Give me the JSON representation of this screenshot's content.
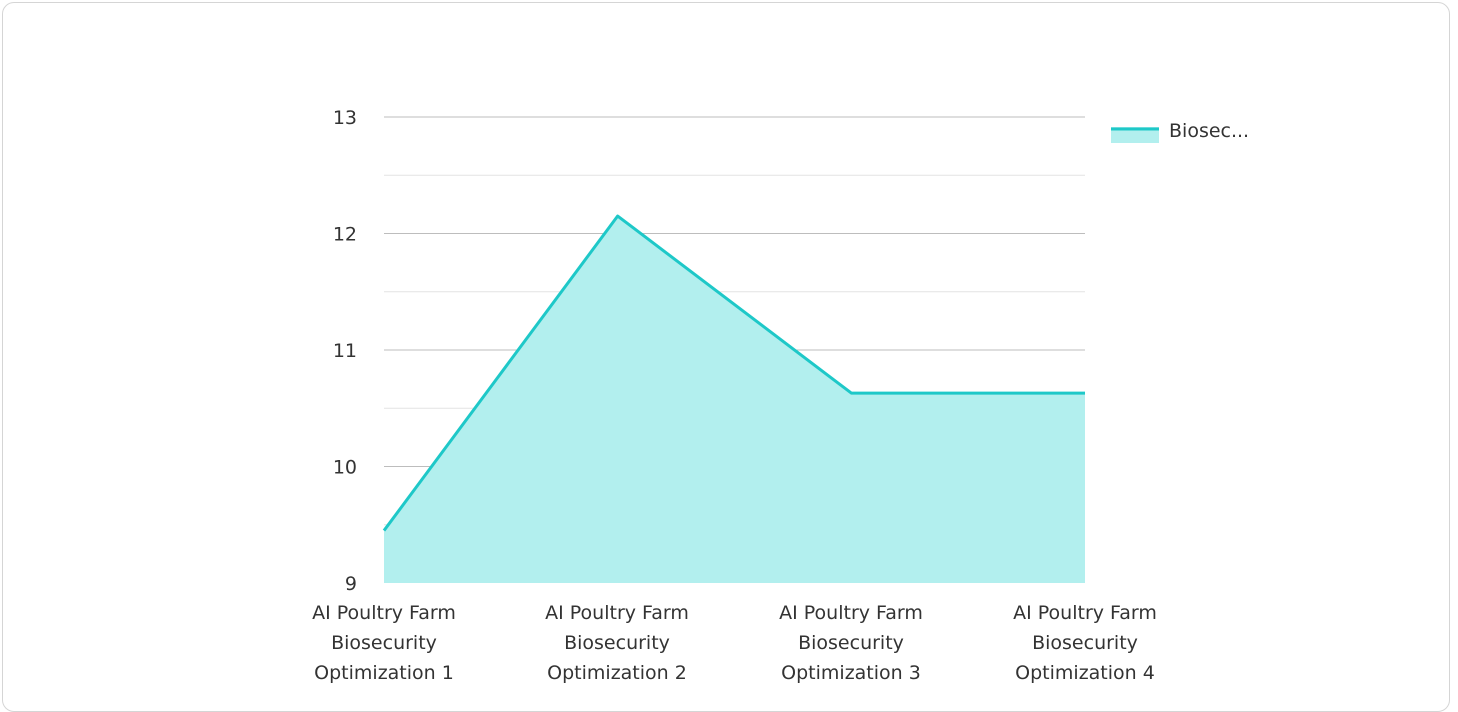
{
  "chart_data": {
    "type": "area",
    "categories": [
      [
        "AI Poultry Farm",
        "Biosecurity",
        "Optimization 1"
      ],
      [
        "AI Poultry Farm",
        "Biosecurity",
        "Optimization 2"
      ],
      [
        "AI Poultry Farm",
        "Biosecurity",
        "Optimization 3"
      ],
      [
        "AI Poultry Farm",
        "Biosecurity",
        "Optimization 4"
      ]
    ],
    "series": [
      {
        "name": "Biosec...",
        "values": [
          9.45,
          12.15,
          10.63,
          10.63
        ]
      }
    ],
    "ylim": [
      9,
      13
    ],
    "y_ticks": [
      "9",
      "10",
      "11",
      "12",
      "13"
    ],
    "grid": true,
    "legend_position": "top-right",
    "colors": {
      "line": "#1ec8c8",
      "fill": "#b2efee",
      "grid_major": "#bdbdbd",
      "grid_minor": "#e4e4e4"
    }
  }
}
